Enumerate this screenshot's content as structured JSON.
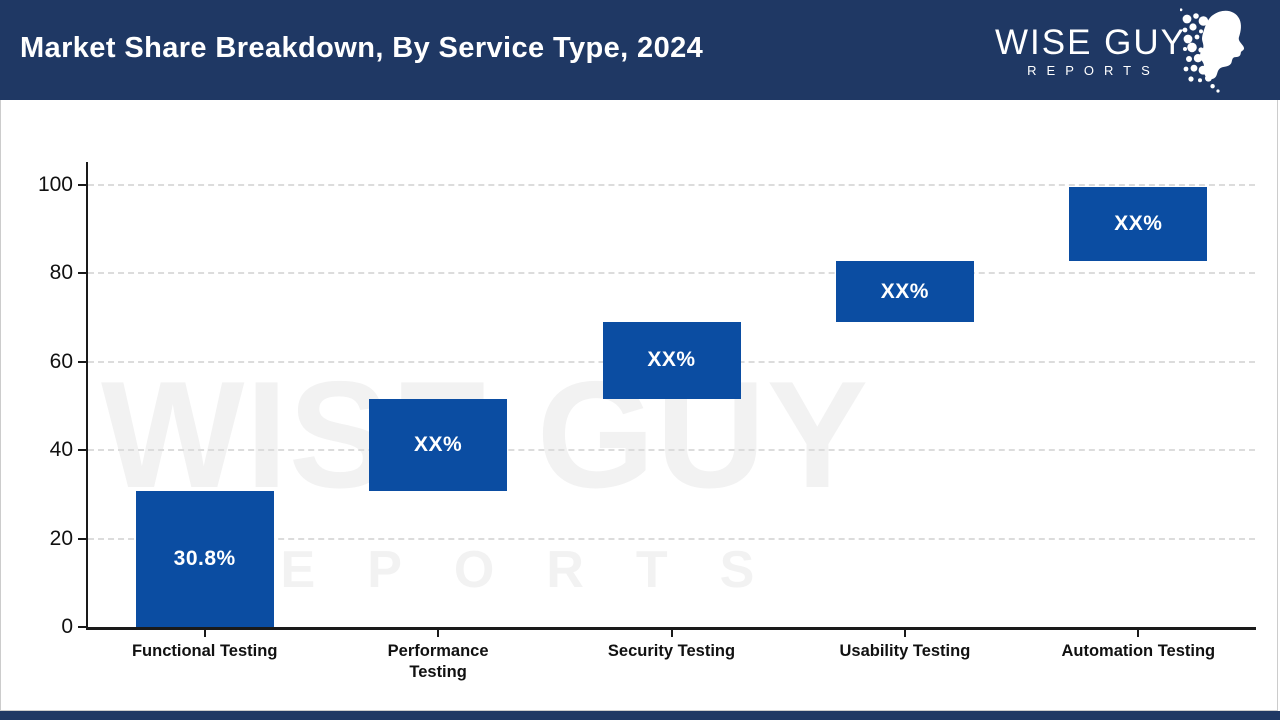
{
  "header": {
    "title": "Market Share Breakdown, By Service Type, 2024",
    "logo_line1": "WISE GUY",
    "logo_line2": "REPORTS"
  },
  "watermark": {
    "line1": "WISE GUY",
    "line2": "REPORTS"
  },
  "colors": {
    "header_bg": "#1f3864",
    "bar": "#0b4da2",
    "bar_label": "#ffffff",
    "gridline": "#dcdcdc",
    "watermark": "#f2f2f2"
  },
  "chart_data": {
    "type": "bar",
    "subtype": "floating-waterfall",
    "title": "Market Share Breakdown, By Service Type, 2024",
    "categories": [
      "Functional Testing",
      "Performance\nTesting",
      "Security Testing",
      "Usability Testing",
      "Automation Testing"
    ],
    "series": [
      {
        "name": "Market share (%)",
        "starts": [
          0,
          30.8,
          51.6,
          69.1,
          82.7
        ],
        "ends": [
          30.8,
          51.6,
          69.1,
          82.7,
          99.6
        ]
      }
    ],
    "bar_labels": [
      "30.8%",
      "XX%",
      "XX%",
      "XX%",
      "XX%"
    ],
    "xlabel": "",
    "ylabel": "",
    "ylim": [
      0,
      107
    ],
    "yticks": [
      0,
      20,
      40,
      60,
      80,
      100
    ],
    "grid": "horizontal-dashed",
    "legend": "none"
  }
}
